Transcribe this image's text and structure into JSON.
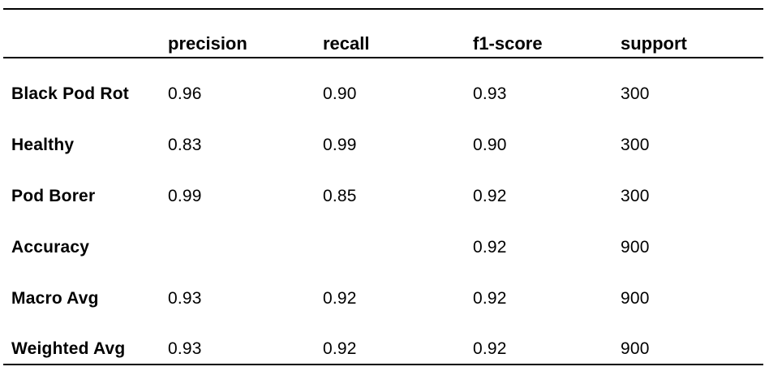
{
  "accent_colors": {
    "text": "#000000",
    "rule": "#000000",
    "background": "#ffffff"
  },
  "chart_data": {
    "type": "table",
    "title": "",
    "columns": [
      "",
      "precision",
      "recall",
      "f1-score",
      "support"
    ],
    "rows": [
      {
        "label": "Black Pod Rot",
        "values": [
          "0.96",
          "0.90",
          "0.93",
          "300"
        ]
      },
      {
        "label": "Healthy",
        "values": [
          "0.83",
          "0.99",
          "0.90",
          "300"
        ]
      },
      {
        "label": "Pod Borer",
        "values": [
          "0.99",
          "0.85",
          "0.92",
          "300"
        ]
      },
      {
        "label": "Accuracy",
        "values": [
          "",
          "",
          "0.92",
          "900"
        ]
      },
      {
        "label": "Macro Avg",
        "values": [
          "0.93",
          "0.92",
          "0.92",
          "900"
        ]
      },
      {
        "label": "Weighted Avg",
        "values": [
          "0.93",
          "0.92",
          "0.92",
          "900"
        ]
      }
    ],
    "layout": {
      "grid": "horizontal rules only: top, below header, bottom",
      "header_style": "bold",
      "row_label_style": "bold"
    }
  }
}
